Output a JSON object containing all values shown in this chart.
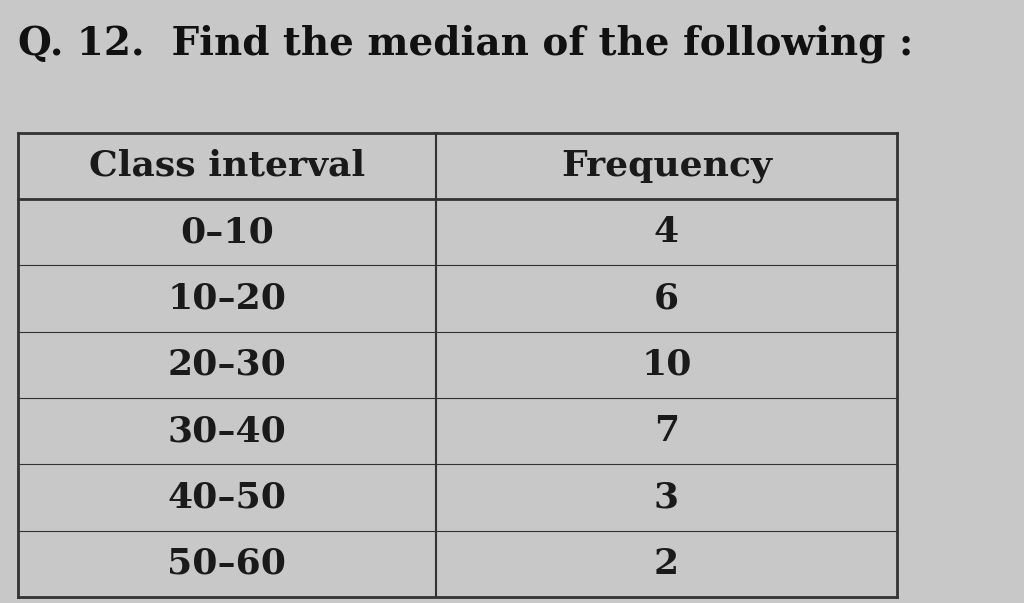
{
  "title": "Q. 12.  Find the median of the following :",
  "col1_header": "Class interval",
  "col2_header": "Frequency",
  "rows": [
    [
      "0–10",
      "4"
    ],
    [
      "10–20",
      "6"
    ],
    [
      "20–30",
      "10"
    ],
    [
      "30–40",
      "7"
    ],
    [
      "40–50",
      "3"
    ],
    [
      "50–60",
      "2"
    ]
  ],
  "bg_color": "#c8c8c8",
  "table_bg": "#c8c8c8",
  "text_color": "#1a1a1a",
  "title_color": "#111111",
  "border_color": "#333333",
  "title_fontsize": 28,
  "header_fontsize": 26,
  "cell_fontsize": 26,
  "fig_width": 10.24,
  "fig_height": 6.03
}
